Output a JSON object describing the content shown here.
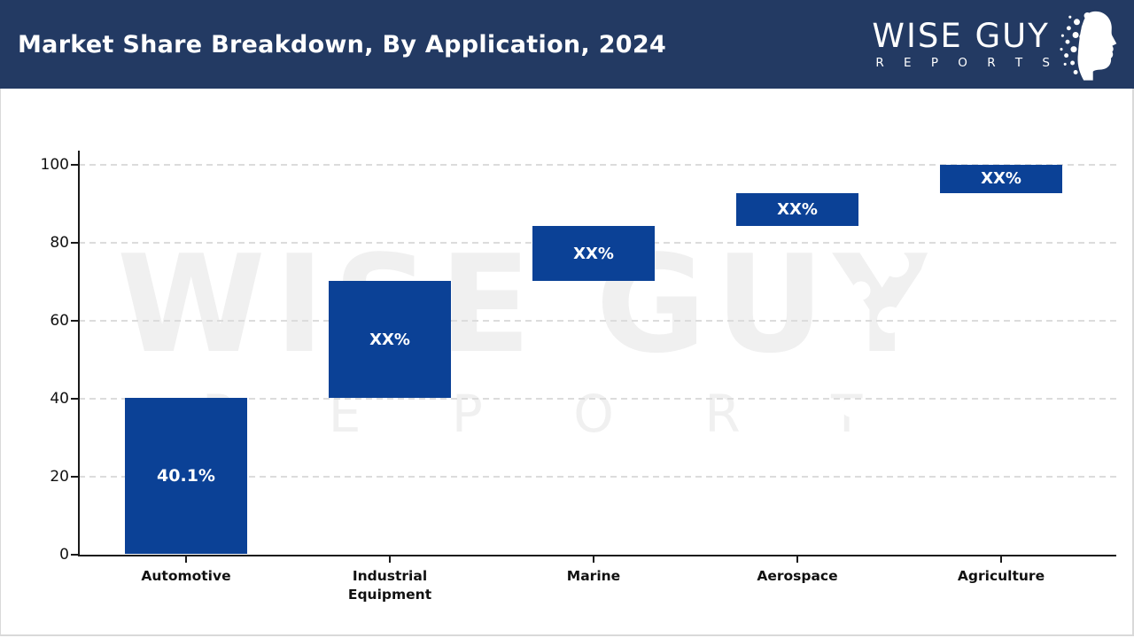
{
  "header": {
    "title": "Market Share Breakdown, By Application, 2024",
    "logo": {
      "name_line": "WISE GUY",
      "reports_line": "R E P O R T S"
    }
  },
  "watermark": {
    "name_line": "WISE GUY",
    "reports_line": "R E P O R T S"
  },
  "colors": {
    "header_bg": "#233a63",
    "bar_fill": "#0b4196",
    "bar_label_text": "#ffffff",
    "gridline": "#dcdcdc",
    "axis_line": "#1a1a1a",
    "tick_text": "#111111",
    "watermark_gray": "#f0f0f0",
    "page_border": "#d9d9d9"
  },
  "chart_data": {
    "type": "bar",
    "subtype": "waterfall",
    "title": "Market Share Breakdown, By Application, 2024",
    "categories": [
      "Automotive",
      "Industrial Equipment",
      "Marine",
      "Aerospace",
      "Agriculture"
    ],
    "display_categories": [
      "Automotive",
      "Industrial\nEquipment",
      "Marine",
      "Aerospace",
      "Agriculture"
    ],
    "segments": [
      {
        "category": "Automotive",
        "start": 0,
        "end": 40.1,
        "label": "40.1%"
      },
      {
        "category": "Industrial Equipment",
        "start": 40.1,
        "end": 70.1,
        "label": "XX%"
      },
      {
        "category": "Marine",
        "start": 70.1,
        "end": 84.2,
        "label": "XX%"
      },
      {
        "category": "Aerospace",
        "start": 84.2,
        "end": 92.7,
        "label": "XX%"
      },
      {
        "category": "Agriculture",
        "start": 92.7,
        "end": 100,
        "label": "XX%"
      }
    ],
    "ylim": [
      0,
      100
    ],
    "yticks": [
      0,
      20,
      40,
      60,
      80,
      100
    ],
    "ytick_labels": [
      "0",
      "20",
      "40",
      "60",
      "80",
      "100"
    ],
    "xlabel": "",
    "ylabel": "",
    "legend": "none",
    "grid": "horizontal-dashed"
  }
}
